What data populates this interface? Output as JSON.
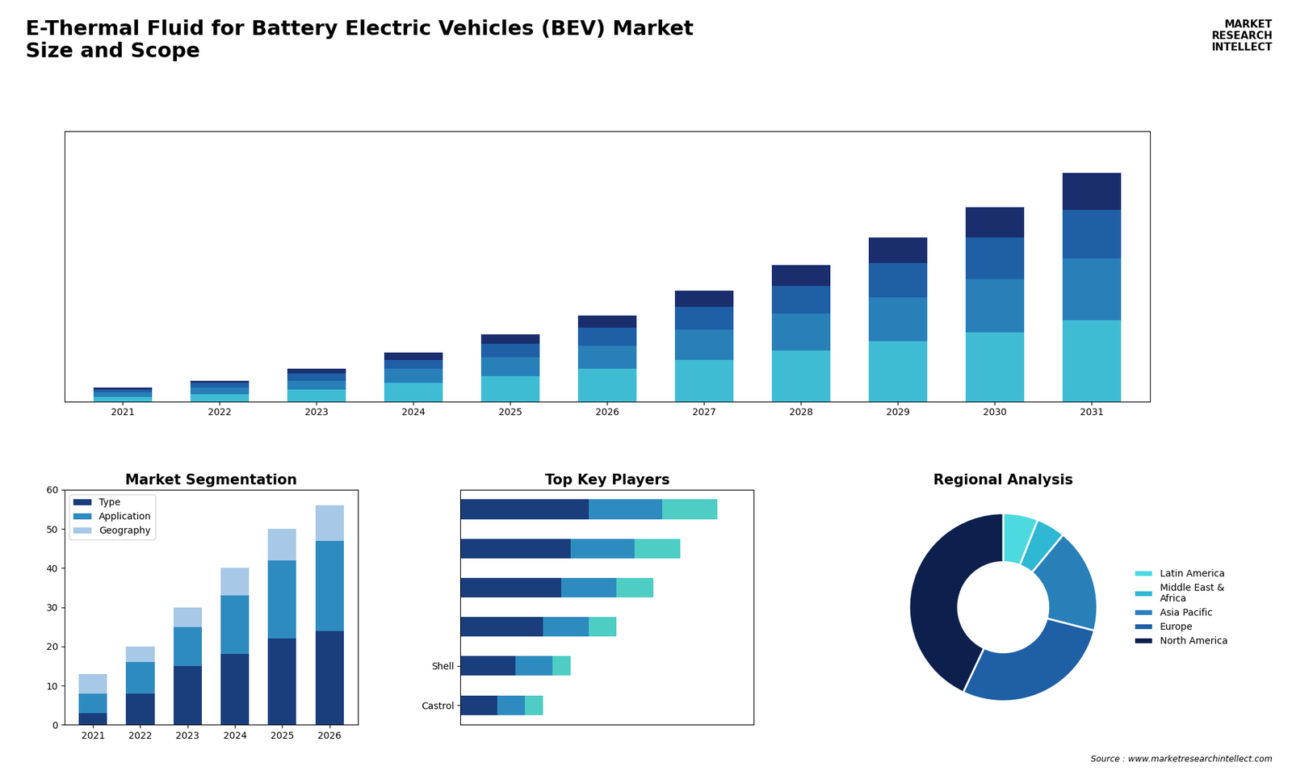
{
  "chart_data": [
    {
      "type": "bar",
      "stacked": true,
      "title": "E-Thermal Fluid for Battery Electric Vehicles (BEV) Market\nSize and Scope",
      "categories": [
        "2021",
        "2022",
        "2023",
        "2024",
        "2025",
        "2026",
        "2027",
        "2028",
        "2029",
        "2030",
        "2031"
      ],
      "series": [
        {
          "color": "#3fbcd4",
          "values": [
            2,
            3,
            5,
            8,
            11,
            14,
            18,
            22,
            26,
            30,
            35
          ]
        },
        {
          "color": "#2980b9",
          "values": [
            2,
            3,
            4,
            6,
            8,
            10,
            13,
            16,
            19,
            23,
            27
          ]
        },
        {
          "color": "#1f5fa6",
          "values": [
            1,
            2,
            3,
            4,
            6,
            8,
            10,
            12,
            15,
            18,
            21
          ]
        },
        {
          "color": "#1a2e6e",
          "values": [
            1,
            1,
            2,
            3,
            4,
            5,
            7,
            9,
            11,
            13,
            16
          ]
        }
      ],
      "ylim": [
        0,
        117
      ],
      "yticks": [],
      "tick_labels": "x",
      "annotations": [
        "MARKET\nRESEARCH\nINTELLECT",
        "Source : www.marketresearchintellect.com"
      ]
    },
    {
      "type": "bar",
      "stacked": true,
      "title": "Market Segmentation",
      "categories": [
        "2021",
        "2022",
        "2023",
        "2024",
        "2025",
        "2026"
      ],
      "series": [
        {
          "name": "Type",
          "color": "#1a3d7c",
          "values": [
            3,
            8,
            15,
            18,
            22,
            24
          ]
        },
        {
          "name": "Application",
          "color": "#2e8bc0",
          "values": [
            5,
            8,
            10,
            15,
            20,
            23
          ]
        },
        {
          "name": "Geography",
          "color": "#a8c8e8",
          "values": [
            5,
            4,
            5,
            7,
            8,
            9
          ]
        }
      ],
      "ylim": [
        0,
        60
      ],
      "yticks": [
        0,
        10,
        20,
        30,
        40,
        50,
        60
      ],
      "legend": "upper left"
    },
    {
      "type": "bar",
      "stacked": true,
      "orientation": "horizontal",
      "title": "Top Key Players",
      "categories": [
        null,
        null,
        null,
        null,
        "Shell",
        "Castrol"
      ],
      "series": [
        {
          "color": "#1a3d7c",
          "values": [
            14,
            12,
            11,
            9,
            6,
            4
          ]
        },
        {
          "color": "#2e8bc0",
          "values": [
            8,
            7,
            6,
            5,
            4,
            3
          ]
        },
        {
          "color": "#4ecdc4",
          "values": [
            6,
            5,
            4,
            3,
            2,
            2
          ]
        }
      ],
      "xlim": [
        0,
        32
      ],
      "xticks": [],
      "tick_labels": "y"
    },
    {
      "type": "pie",
      "title": "Regional Analysis",
      "categories": [
        "Latin America",
        "Middle East &\nAfrica",
        "Asia Pacific",
        "Europe",
        "North America"
      ],
      "values": [
        6,
        5,
        18,
        28,
        43
      ],
      "colors": [
        "#4dd9e0",
        "#2eb8d4",
        "#2980b9",
        "#1f5fa6",
        "#0d1f4c"
      ],
      "legend": "center left"
    }
  ]
}
